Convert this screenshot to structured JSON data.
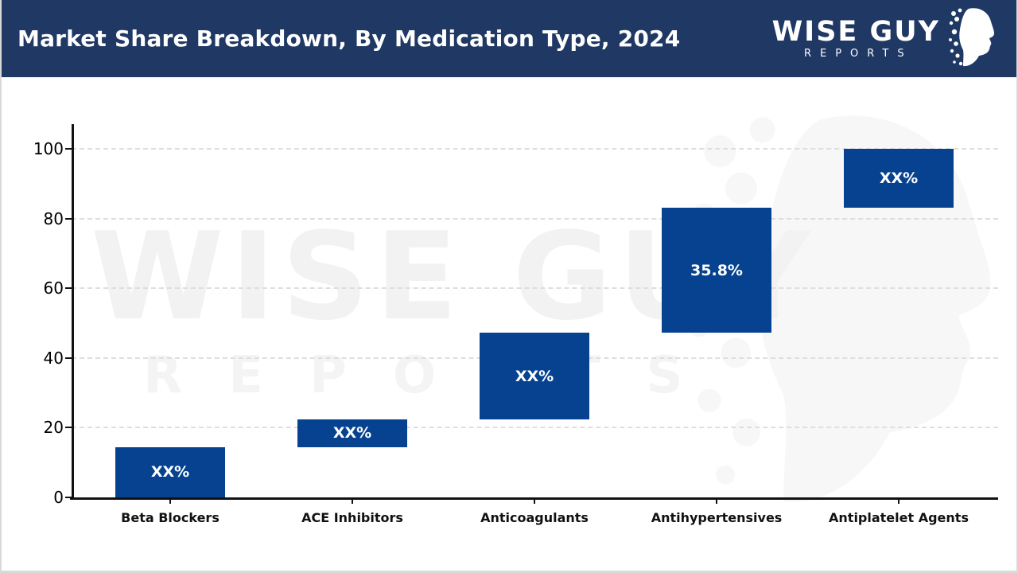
{
  "header": {
    "title": "Market Share Breakdown, By Medication Type, 2024",
    "logo": {
      "line1": "WISE GUY",
      "line2": "REPORTS"
    }
  },
  "watermark": {
    "line1": "WISE GUY",
    "line2": "REPORTS"
  },
  "colors": {
    "header_bg": "#1f3864",
    "bar": "#06428f",
    "grid": "#dedede",
    "watermark": "#f2f2f2",
    "axis": "#111111"
  },
  "chart_data": {
    "type": "bar",
    "subtype": "floating-waterfall",
    "title": "Market Share Breakdown, By Medication Type, 2024",
    "categories": [
      "Beta Blockers",
      "ACE Inhibitors",
      "Anticoagulants",
      "Antihypertensives",
      "Antiplatelet Agents"
    ],
    "series": [
      {
        "name": "Market Share %",
        "ranges": [
          [
            0,
            14.4
          ],
          [
            14.4,
            22.4
          ],
          [
            22.4,
            47.2
          ],
          [
            47.2,
            83.0
          ],
          [
            83.0,
            100.0
          ]
        ],
        "values": [
          14.4,
          8.0,
          24.8,
          35.8,
          17.0
        ],
        "labels": [
          "XX%",
          "XX%",
          "XX%",
          "35.8%",
          "XX%"
        ]
      }
    ],
    "xlabel": "",
    "ylabel": "",
    "yticks": [
      0,
      20,
      40,
      60,
      80,
      100
    ],
    "ylim": [
      0,
      107
    ],
    "grid": "horizontal-dashed",
    "legend": "none",
    "bar_color": "#06428f"
  }
}
